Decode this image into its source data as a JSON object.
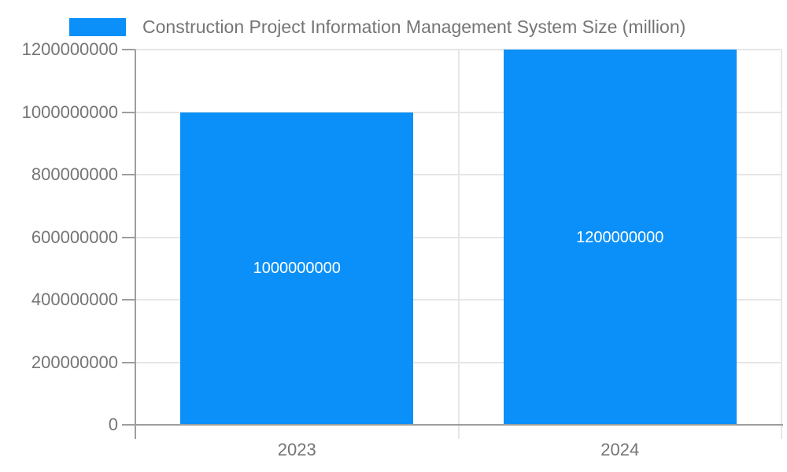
{
  "chart_data": {
    "type": "bar",
    "title": "Construction Project Information Management System Size (million)",
    "categories": [
      "2023",
      "2024"
    ],
    "values": [
      1000000000,
      1200000000
    ],
    "bar_labels": [
      "1000000000",
      "1200000000"
    ],
    "ytick_labels": [
      "0",
      "200000000",
      "400000000",
      "600000000",
      "800000000",
      "1000000000",
      "1200000000"
    ],
    "ytick_values": [
      0,
      200000000,
      400000000,
      600000000,
      800000000,
      1000000000,
      1200000000
    ],
    "ylim": [
      0,
      1200000000
    ],
    "xlabel": "",
    "ylabel": "",
    "grid": true,
    "legend_position": "top-left",
    "colors": {
      "bar": "#0a90f8",
      "bar_label_text": "#ffffff",
      "axis_line": "#9e9e9e",
      "gridline": "#e6e6e6",
      "tick_text": "#757575",
      "background": "#ffffff"
    }
  }
}
